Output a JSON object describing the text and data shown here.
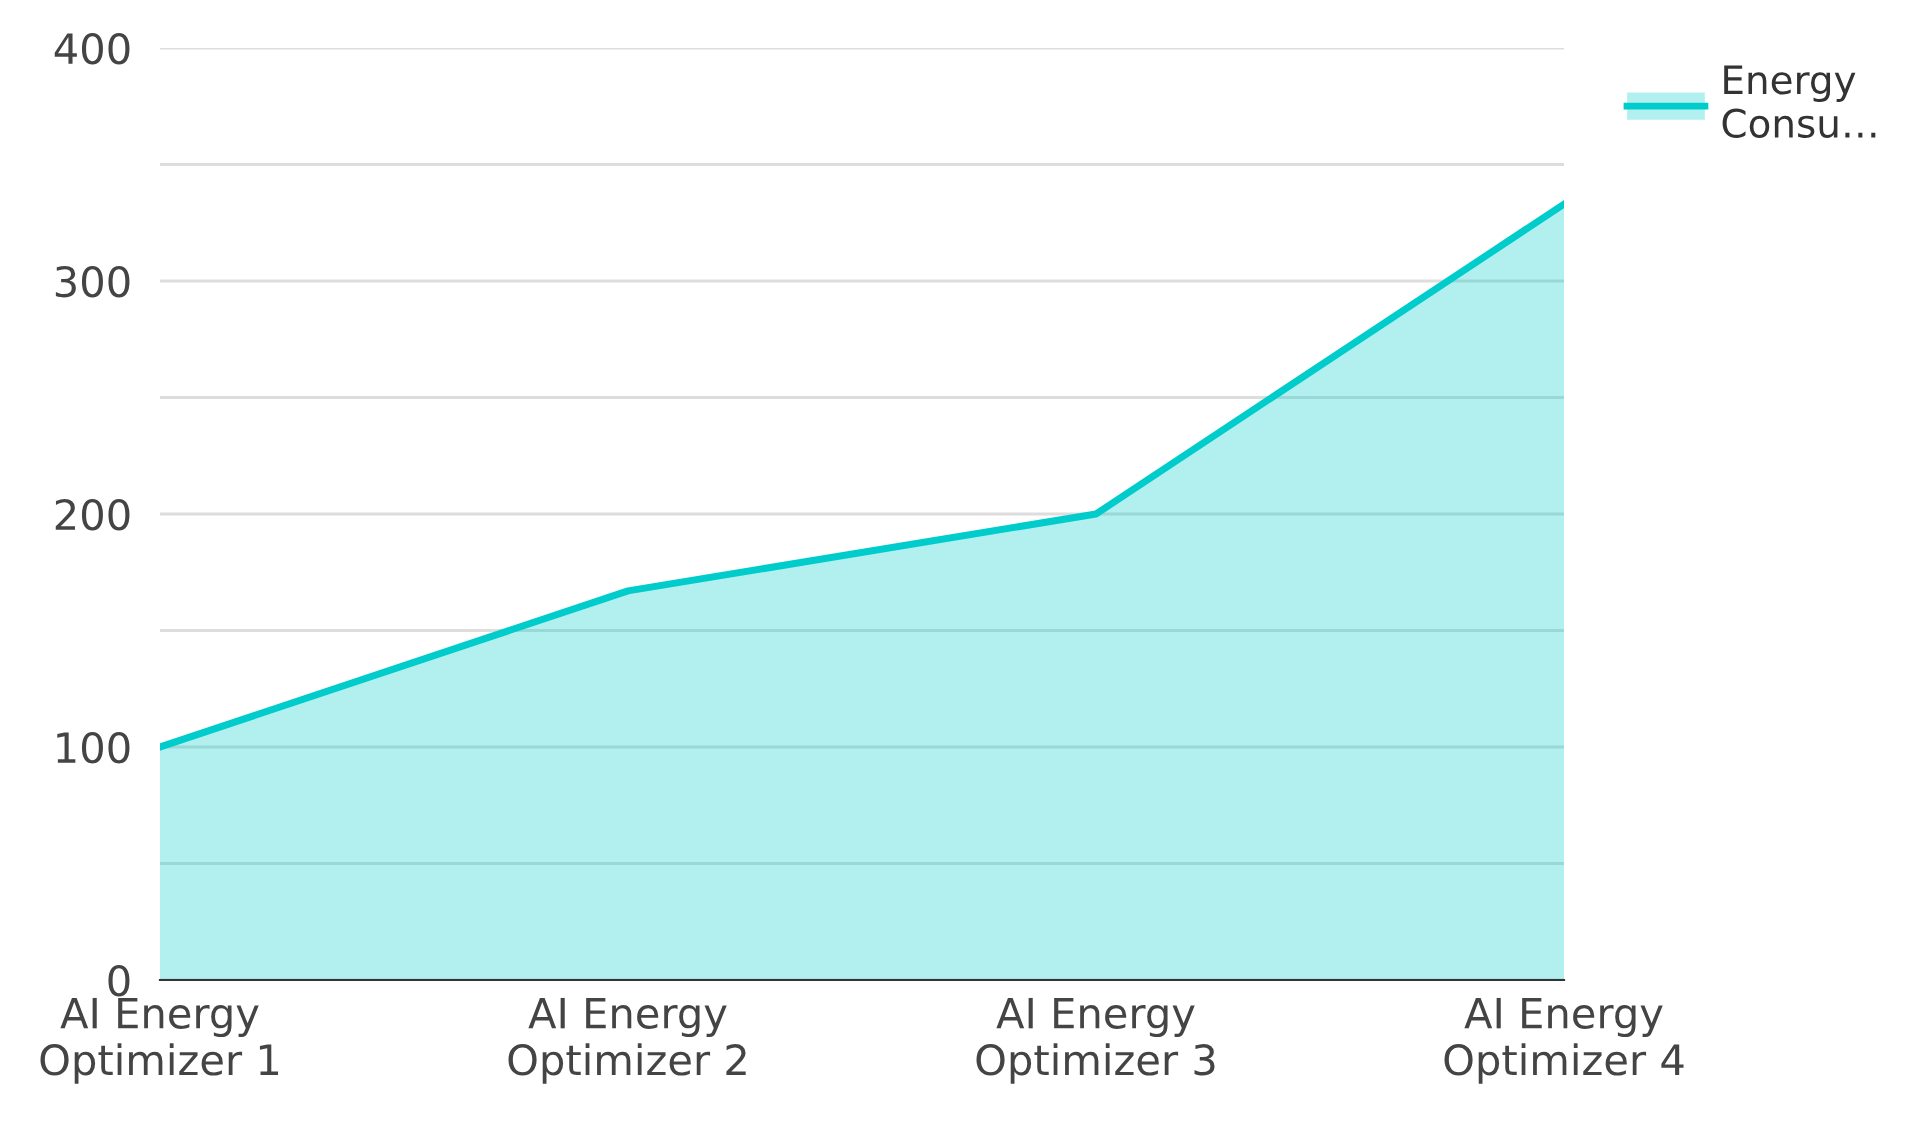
{
  "chart_data": {
    "type": "area",
    "categories": [
      "AI Energy\nOptimizer 1",
      "AI Energy\nOptimizer 2",
      "AI Energy\nOptimizer 3",
      "AI Energy\nOptimizer 4"
    ],
    "series": [
      {
        "name": "Energy Consu…",
        "color": "#00cccc",
        "values": [
          100,
          167,
          200,
          333
        ]
      }
    ],
    "ylim": [
      0,
      400
    ],
    "yticks": [
      0,
      {
        "value": 50,
        "label": null
      },
      100,
      {
        "value": 150,
        "label": null
      },
      200,
      {
        "value": 250,
        "label": null
      },
      300,
      {
        "value": 350,
        "label": null
      },
      400
    ],
    "grid": "y",
    "legend": "top right",
    "marker": "none"
  }
}
